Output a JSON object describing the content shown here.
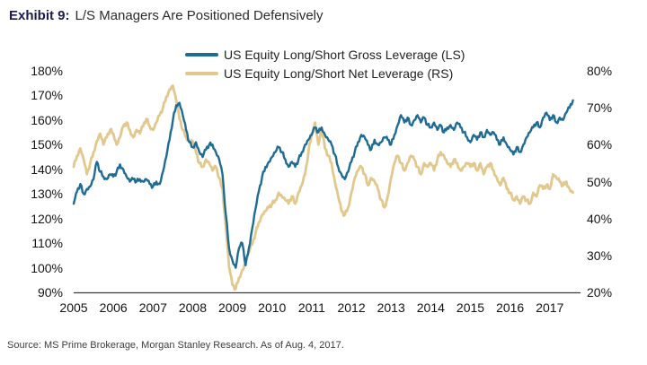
{
  "title": {
    "prefix": "Exhibit 9:",
    "text": "L/S Managers Are Positioned Defensively"
  },
  "source": "Source: MS Prime Brokerage, Morgan Stanley Research. As of Aug. 4, 2017.",
  "chart_data": {
    "type": "line",
    "title": "L/S Managers Are Positioned Defensively",
    "x_start_year": 2005.0,
    "x_step_years": 0.083333,
    "x_end_label": "Aug. 4, 2017",
    "x_tick_labels": [
      "2005",
      "2006",
      "2007",
      "2008",
      "2009",
      "2010",
      "2011",
      "2012",
      "2013",
      "2014",
      "2015",
      "2016",
      "2017"
    ],
    "left_axis": {
      "min": 90,
      "max": 180,
      "step": 10,
      "labels": [
        "180%",
        "170%",
        "160%",
        "150%",
        "140%",
        "130%",
        "120%",
        "110%",
        "100%",
        "90%"
      ]
    },
    "right_axis": {
      "min": 20,
      "max": 80,
      "step": 10,
      "labels": [
        "80%",
        "70%",
        "60%",
        "50%",
        "40%",
        "30%",
        "20%"
      ]
    },
    "grid": false,
    "legend_position": "top-center",
    "series": [
      {
        "name": "US Equity Long/Short Gross Leverage (LS)",
        "axis": "left",
        "color": "#1E6C94",
        "unit": "%",
        "values": [
          126,
          131,
          134,
          130,
          132,
          133,
          136,
          143,
          139,
          137,
          136,
          138,
          137,
          139,
          142,
          140,
          137,
          135,
          136,
          135,
          136,
          135,
          136,
          134,
          133,
          135,
          134,
          139,
          145,
          152,
          160,
          166,
          167,
          162,
          156,
          151,
          149,
          151,
          147,
          145,
          148,
          150,
          150,
          147,
          144,
          138,
          122,
          108,
          103,
          100,
          108,
          110,
          101,
          108,
          116,
          124,
          131,
          137,
          141,
          143,
          145,
          147,
          149,
          147,
          144,
          141,
          143,
          141,
          144,
          147,
          150,
          152,
          154,
          157,
          155,
          157,
          154,
          152,
          150,
          146,
          141,
          138,
          136,
          139,
          143,
          147,
          151,
          154,
          153,
          150,
          148,
          152,
          150,
          151,
          153,
          152,
          150,
          154,
          158,
          162,
          159,
          161,
          158,
          160,
          162,
          159,
          161,
          158,
          157,
          159,
          156,
          158,
          155,
          157,
          158,
          156,
          159,
          157,
          155,
          153,
          151,
          154,
          152,
          155,
          153,
          156,
          154,
          155,
          152,
          150,
          153,
          150,
          148,
          146,
          149,
          147,
          150,
          153,
          155,
          157,
          159,
          157,
          161,
          163,
          160,
          162,
          159,
          161,
          160,
          163,
          165,
          168
        ]
      },
      {
        "name": "US Equity Long/Short Net Leverage (RS)",
        "axis": "right",
        "color": "#E2C88C",
        "unit": "%",
        "values": [
          54,
          57,
          59,
          56,
          52,
          55,
          58,
          61,
          63,
          60,
          62,
          64,
          63,
          60,
          62,
          65,
          66,
          64,
          62,
          64,
          63,
          65,
          67,
          65,
          64,
          66,
          68,
          70,
          73,
          75,
          76,
          72,
          67,
          64,
          62,
          61,
          61,
          58,
          55,
          54,
          56,
          55,
          53,
          54,
          51,
          48,
          38,
          27,
          22,
          21,
          24,
          26,
          28,
          31,
          33,
          36,
          39,
          41,
          42,
          43,
          44,
          45,
          47,
          46,
          45,
          44,
          46,
          44,
          47,
          49,
          52,
          58,
          63,
          66,
          60,
          64,
          59,
          57,
          55,
          50,
          46,
          42,
          41,
          43,
          47,
          51,
          53,
          54,
          52,
          49,
          51,
          50,
          48,
          45,
          43,
          46,
          51,
          55,
          57,
          55,
          53,
          55,
          57,
          56,
          54,
          52,
          55,
          54,
          55,
          53,
          56,
          58,
          57,
          55,
          54,
          56,
          55,
          53,
          54,
          55,
          54,
          55,
          53,
          55,
          52,
          54,
          55,
          53,
          51,
          49,
          51,
          48,
          47,
          45,
          46,
          44,
          46,
          45,
          44,
          47,
          46,
          49,
          48,
          49,
          48,
          52,
          51,
          50,
          49,
          50,
          48,
          47
        ]
      }
    ]
  }
}
